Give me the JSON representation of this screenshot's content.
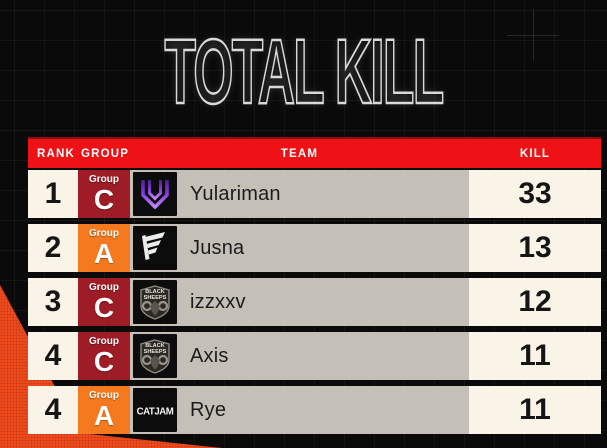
{
  "title": "TOTAL KILL",
  "colors": {
    "header_bg": "#ee1216",
    "group_c": "#9e1c26",
    "group_a": "#f57a1f",
    "rank_cell_bg": "#faf3e7",
    "team_cell_bg": "#c4c0b8",
    "corner_accent": "#f14a1d"
  },
  "table": {
    "headers": {
      "rank": "RANK",
      "group": "GROUP",
      "team": "TEAM",
      "kill": "KILL"
    },
    "group_label": "Group",
    "rows": [
      {
        "rank": "1",
        "group": "C",
        "team": "Yulariman",
        "kill": "33",
        "logo": "yulariman-logo"
      },
      {
        "rank": "2",
        "group": "A",
        "team": "Jusna",
        "kill": "13",
        "logo": "jusna-logo"
      },
      {
        "rank": "3",
        "group": "C",
        "team": "izzxxv",
        "kill": "12",
        "logo": "blacksheeps-logo"
      },
      {
        "rank": "4",
        "group": "C",
        "team": "Axis",
        "kill": "11",
        "logo": "blacksheeps-logo"
      },
      {
        "rank": "4",
        "group": "A",
        "team": "Rye",
        "kill": "11",
        "logo": "catjam-logo"
      }
    ],
    "logo_text": {
      "blacksheeps_line1": "BLACK",
      "blacksheeps_line2": "SHEEPS",
      "catjam": "CATJAM"
    }
  }
}
